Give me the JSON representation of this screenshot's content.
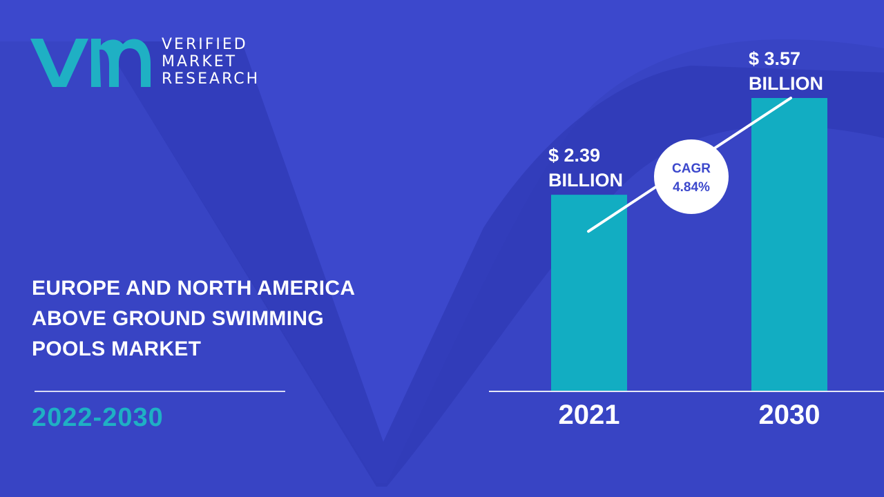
{
  "brand": {
    "line1": "VERIFIED",
    "line2": "MARKET",
    "line3": "RESEARCH",
    "accent": "#1fb0c4"
  },
  "title_lines": [
    "EUROPE AND NORTH AMERICA",
    "ABOVE GROUND SWIMMING",
    "POOLS MARKET"
  ],
  "forecast_period": "2022-2030",
  "colors": {
    "background": "#3c48cc",
    "background_shape": "#2f39b5",
    "bar": "#12adc2",
    "title_text": "#ffffff",
    "period_text": "#1fb0c4",
    "cagr_text": "#3c48cc"
  },
  "chart_data": {
    "type": "bar",
    "categories": [
      "2021",
      "2030"
    ],
    "values": [
      2.39,
      3.57
    ],
    "value_labels": [
      [
        "$ 2.39",
        "BILLION"
      ],
      [
        "$ 3.57",
        "BILLION"
      ]
    ],
    "unit": "BILLION",
    "annotation": {
      "line1": "CAGR",
      "line2": "4.84%"
    },
    "ylim": [
      0,
      3.57
    ],
    "grid": false,
    "legend": "none"
  }
}
